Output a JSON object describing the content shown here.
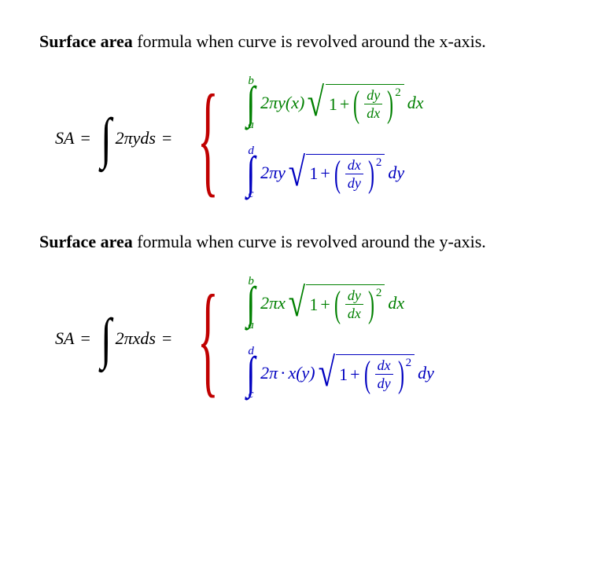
{
  "colors": {
    "green": "#008000",
    "blue": "#0000c0",
    "red": "#c00000",
    "black": "#000000",
    "bg": "#ffffff"
  },
  "section1": {
    "heading_bold": "Surface area",
    "heading_rest": " formula when curve is revolved around the x-axis.",
    "lhs": {
      "sa": "SA",
      "eq1": "=",
      "two_pi_y_ds": "2πyds",
      "eq2": "="
    },
    "case_top": {
      "color": "green",
      "b": "b",
      "a": "a",
      "pre": "2πy(x)",
      "one": "1",
      "plus": "+",
      "num": "dy",
      "den": "dx",
      "sq": "2",
      "d": "dx"
    },
    "case_bot": {
      "color": "blue",
      "d": "d",
      "c": "c",
      "pre": "2πy",
      "one": "1",
      "plus": "+",
      "num": "dx",
      "den": "dy",
      "sq": "2",
      "diff": "dy"
    }
  },
  "section2": {
    "heading_bold": "Surface area",
    "heading_rest": " formula when curve is revolved around the y-axis.",
    "lhs": {
      "sa": "SA",
      "eq1": "=",
      "two_pi_x_ds": "2πxds",
      "eq2": "="
    },
    "case_top": {
      "color": "green",
      "b": "b",
      "a": "a",
      "pre": "2πx",
      "one": "1",
      "plus": "+",
      "num": "dy",
      "den": "dx",
      "sq": "2",
      "d": "dx"
    },
    "case_bot": {
      "color": "blue",
      "d": "d",
      "c": "c",
      "pre1": "2π",
      "dot": "·",
      "pre2": "x(y)",
      "one": "1",
      "plus": "+",
      "num": "dx",
      "den": "dy",
      "sq": "2",
      "diff": "dy"
    }
  }
}
